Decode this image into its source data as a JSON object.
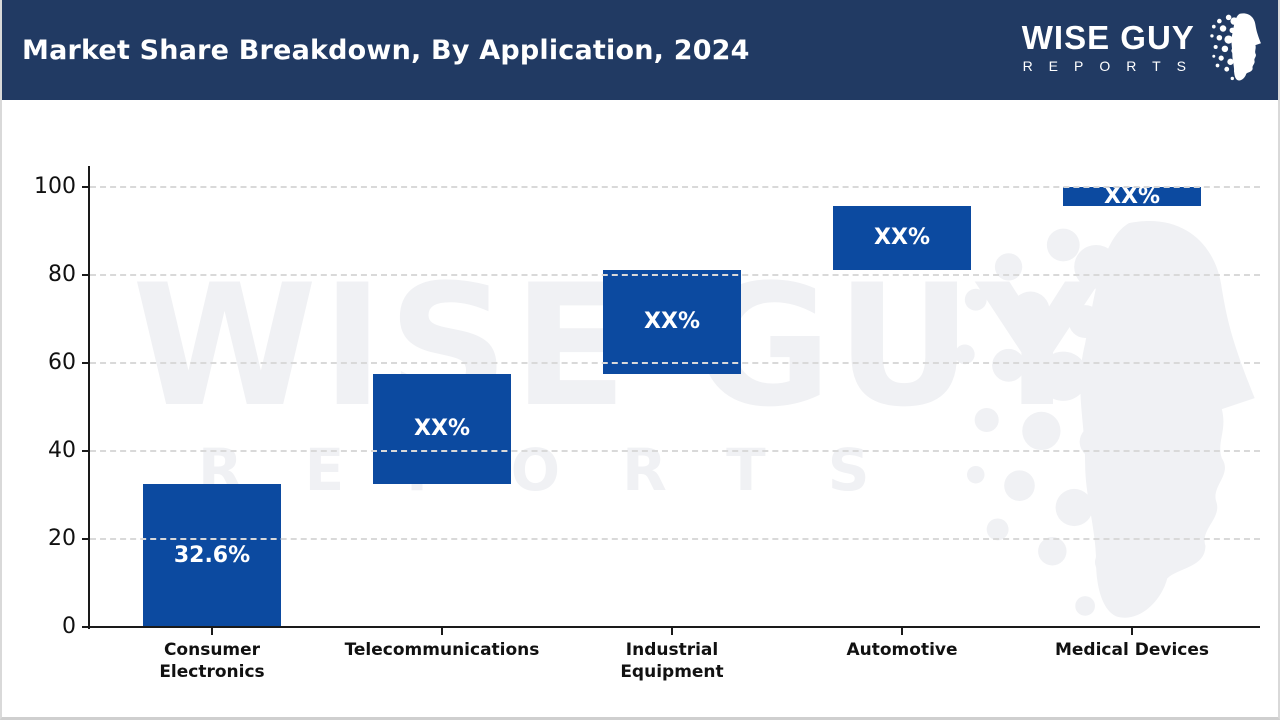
{
  "header": {
    "title": "Market Share Breakdown, By Application, 2024",
    "brand": {
      "name": "WISE GUY",
      "tagline": "REPORTS"
    }
  },
  "watermark": {
    "line1": "WISE GUY",
    "line2": "REPORTS"
  },
  "colors": {
    "header_bg": "#213a63",
    "bar": "#0c4aa0",
    "gridline": "#d9d9d9",
    "axis": "#1a1a1a",
    "watermark": "#f0f1f4"
  },
  "chart_data": {
    "type": "bar",
    "subtype": "waterfall",
    "title": "Market Share Breakdown, By Application, 2024",
    "xlabel": "",
    "ylabel": "",
    "ylim": [
      0,
      100
    ],
    "yticks": [
      0,
      20,
      40,
      60,
      80,
      100
    ],
    "grid": "horizontal-dashed",
    "legend": "none",
    "categories": [
      "Consumer Electronics",
      "Telecommunications",
      "Industrial Equipment",
      "Automotive",
      "Medical Devices"
    ],
    "category_label_lines": [
      [
        "Consumer",
        "Electronics"
      ],
      [
        "Telecommunications"
      ],
      [
        "Industrial",
        "Equipment"
      ],
      [
        "Automotive"
      ],
      [
        "Medical Devices"
      ]
    ],
    "segments": [
      {
        "category": "Consumer Electronics",
        "start": 0,
        "end": 32.6,
        "label": "32.6%"
      },
      {
        "category": "Telecommunications",
        "start": 32.6,
        "end": 57.5,
        "label": "XX%"
      },
      {
        "category": "Industrial Equipment",
        "start": 57.5,
        "end": 81.2,
        "label": "XX%"
      },
      {
        "category": "Automotive",
        "start": 81.2,
        "end": 95.7,
        "label": "XX%"
      },
      {
        "category": "Medical Devices",
        "start": 95.7,
        "end": 100,
        "label": "XX%"
      }
    ]
  }
}
